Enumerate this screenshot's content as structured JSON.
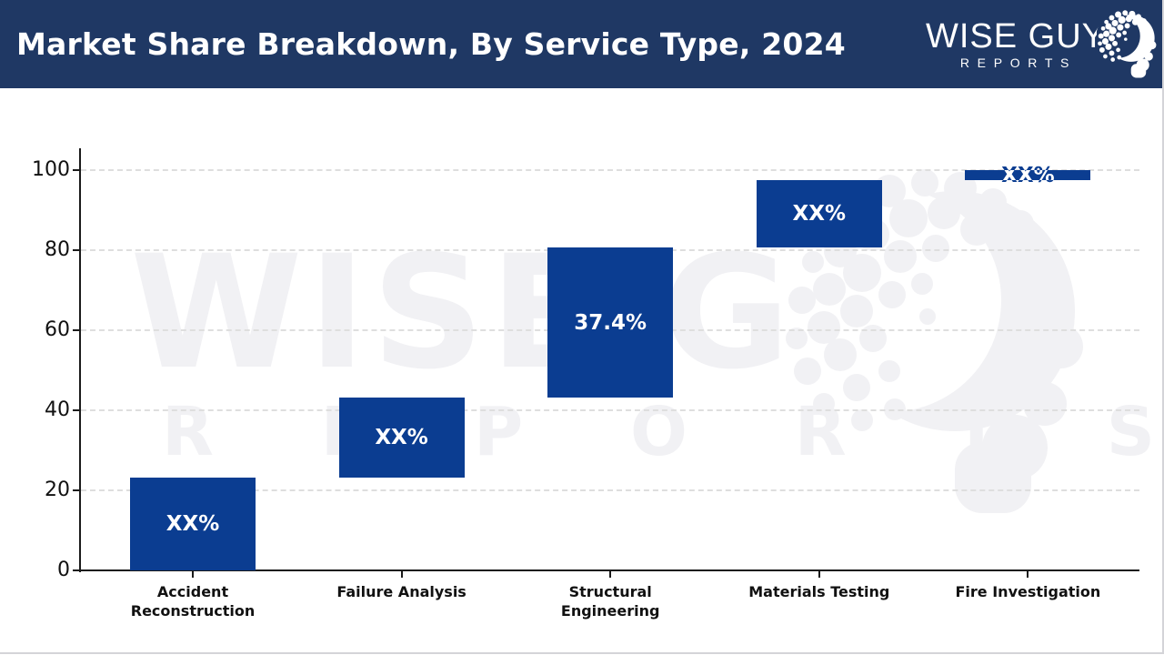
{
  "header": {
    "title": "Market Share Breakdown, By Service Type, 2024"
  },
  "logo": {
    "name": "WISE GUY",
    "tagline": "REPORTS"
  },
  "watermark": {
    "line1": "WISE GUY",
    "line2": "R E P O R T S"
  },
  "colors": {
    "header_bg": "#1f3864",
    "bar": "#0b3d91",
    "grid": "#dedede",
    "axis": "#1a1a1a",
    "bar_label": "#ffffff",
    "watermark": "#f1f1f4",
    "edge": "#d4d4d8"
  },
  "chart_data": {
    "type": "bar",
    "subtype": "waterfall",
    "title": "Market Share Breakdown, By Service Type, 2024",
    "categories": [
      "Accident\nReconstruction",
      "Failure Analysis",
      "Structural\nEngineering",
      "Materials Testing",
      "Fire Investigation"
    ],
    "segments": [
      {
        "category": "Accident Reconstruction",
        "start": 0,
        "end": 23.2,
        "value": 23.2,
        "label": "XX%"
      },
      {
        "category": "Failure Analysis",
        "start": 23.2,
        "end": 43.2,
        "value": 20.0,
        "label": "XX%"
      },
      {
        "category": "Structural Engineering",
        "start": 43.2,
        "end": 80.6,
        "value": 37.4,
        "label": "37.4%"
      },
      {
        "category": "Materials Testing",
        "start": 80.6,
        "end": 97.5,
        "value": 16.9,
        "label": "XX%"
      },
      {
        "category": "Fire Investigation",
        "start": 97.5,
        "end": 100,
        "value": 2.5,
        "label": "XX%"
      }
    ],
    "xlabel": "",
    "ylabel": "",
    "yticks": [
      0,
      20,
      40,
      60,
      80,
      100
    ],
    "ylim": [
      0,
      105
    ],
    "grid": "horizontal-dashed",
    "legend": "none"
  }
}
